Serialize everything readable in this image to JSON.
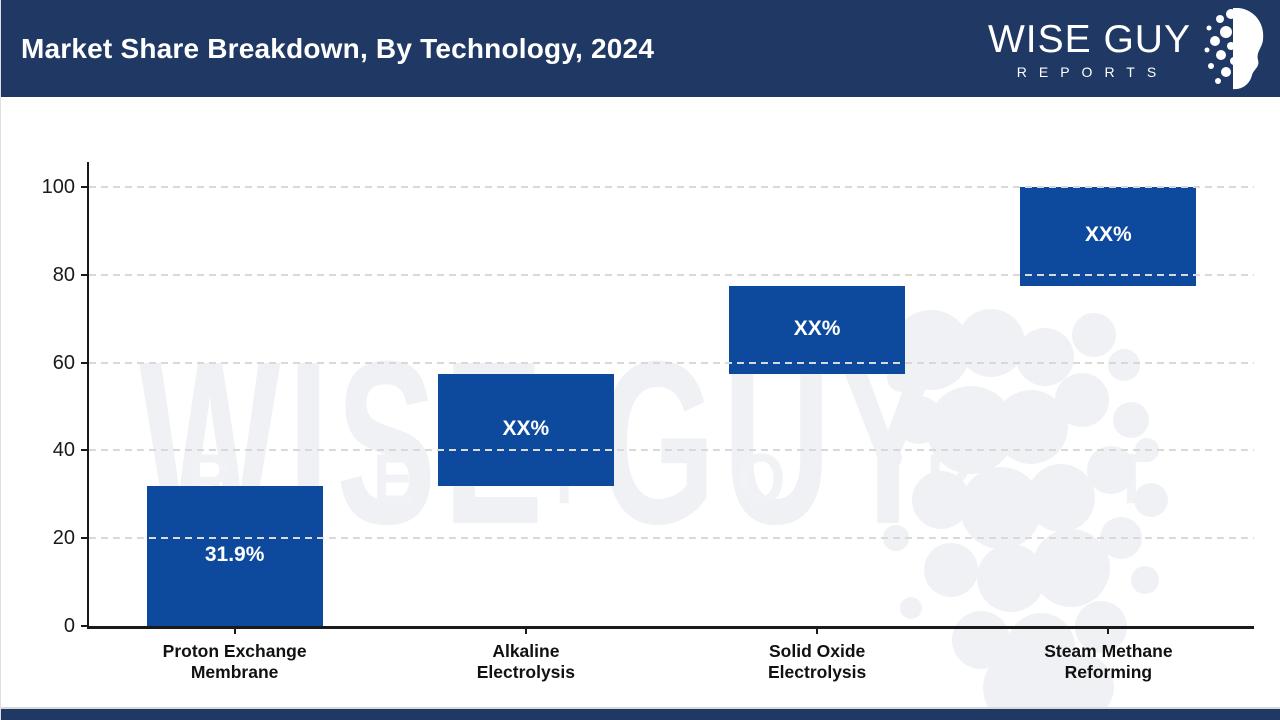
{
  "header": {
    "title": "Market Share Breakdown, By Technology, 2024",
    "logo": {
      "line1": "WISE GUY",
      "line2": "REPORTS",
      "icon": "dotted-head-profile"
    }
  },
  "watermark": {
    "line1": "WISE GUY",
    "line2": "R E P O R T S",
    "icon": "dotted-head-profile"
  },
  "chart_data": {
    "type": "bar",
    "subtype": "floating-waterfall",
    "title": "Market Share Breakdown, By Technology, 2024",
    "categories": [
      "Proton Exchange\nMembrane",
      "Alkaline\nElectrolysis",
      "Solid Oxide\nElectrolysis",
      "Steam Methane\nReforming"
    ],
    "bars": [
      {
        "start": 0,
        "end": 31.9,
        "value": 31.9,
        "label": "31.9%"
      },
      {
        "start": 31.9,
        "end": 57.5,
        "value": 25.6,
        "label": "XX%"
      },
      {
        "start": 57.5,
        "end": 77.5,
        "value": 20.0,
        "label": "XX%"
      },
      {
        "start": 77.5,
        "end": 100,
        "value": 22.5,
        "label": "XX%"
      }
    ],
    "xlabel": "",
    "ylabel": "",
    "ylim": [
      0,
      100
    ],
    "yticks": [
      0,
      20,
      40,
      60,
      80,
      100
    ],
    "grid": "dashed-horizontal-over-bars",
    "legend": "none"
  },
  "colors": {
    "header_navy": "#1f3864",
    "bar_blue": "#0d4a9e",
    "grid_gray": "#d9d9d9",
    "axis_black": "#1a1a1a",
    "bar_label_white": "#ffffff",
    "watermark_gray": "#eff1f4"
  }
}
